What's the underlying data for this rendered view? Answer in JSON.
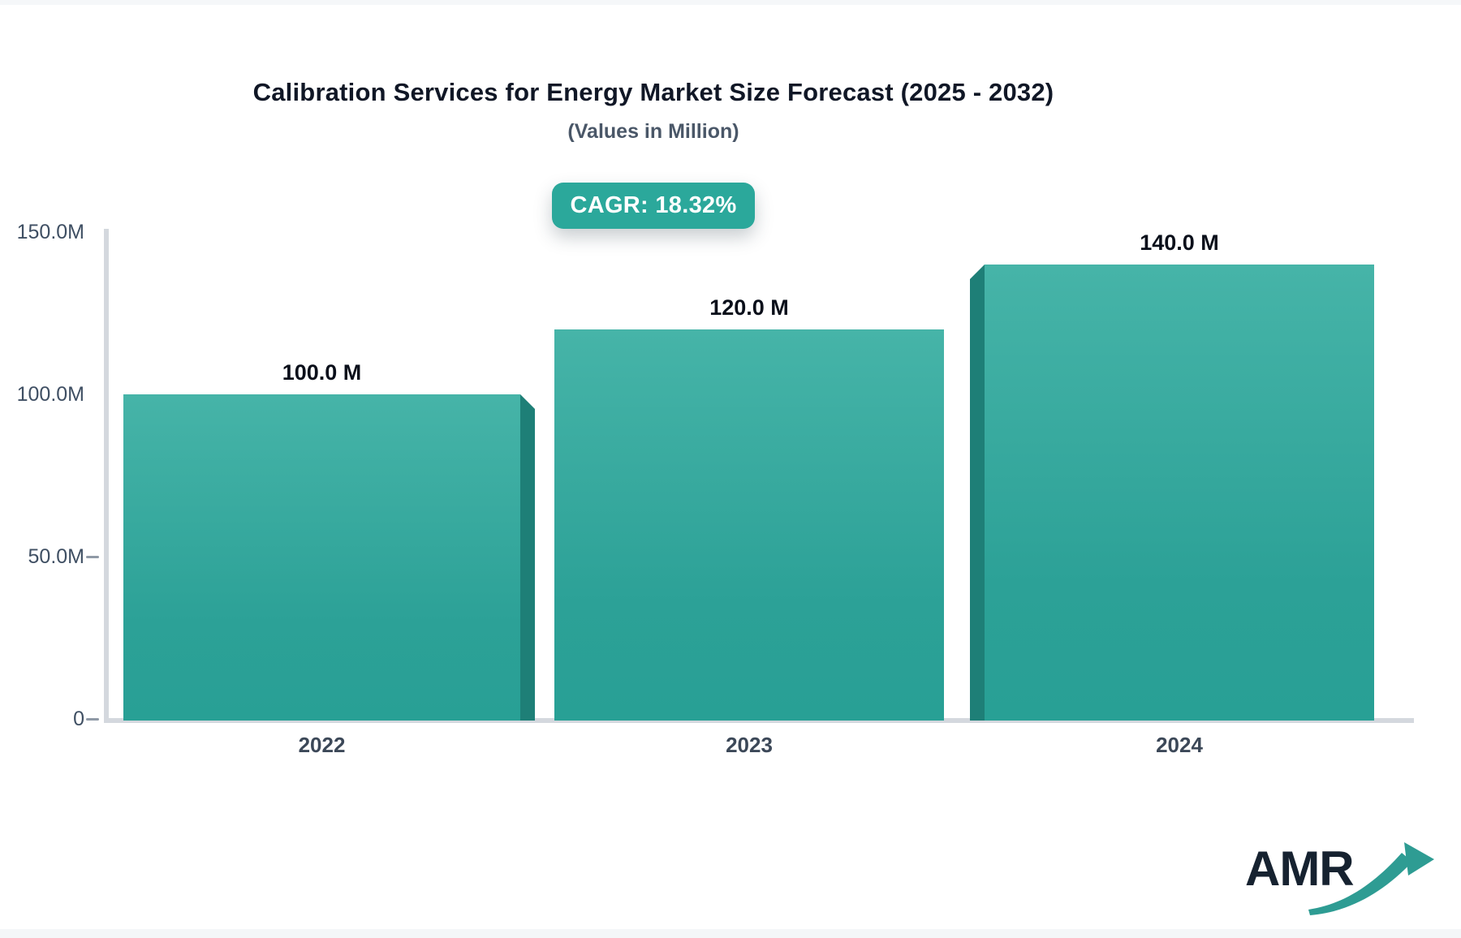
{
  "page": {
    "title": "Calibration Services for Energy Market Size Forecast (2025 - 2032)",
    "subtitle": "(Values in Million)",
    "cagr_label": "CAGR: 18.32%",
    "logo_text": "AMR"
  },
  "colors": {
    "bar_gradient_top": "#46b4a8",
    "bar_gradient_bottom": "#28a095",
    "bar_side_panel": "#1e7f77",
    "badge_background": "#2ba89b",
    "badge_text": "#ffffff",
    "axis_line": "#d4d8de",
    "axis_text": "#3f4f63",
    "title_text": "#101726",
    "subtitle_text": "#4a5768",
    "value_text": "#0a0f1a",
    "logo_text": "#162230",
    "logo_arrow": "#2e9c93"
  },
  "chart_data": {
    "type": "bar",
    "title": "Calibration Services for Energy Market Size Forecast (2025 - 2032)",
    "subtitle": "(Values in Million)",
    "unit": "Million",
    "annotation": "CAGR: 18.32%",
    "categories": [
      "2022",
      "2023",
      "2024"
    ],
    "values": [
      100.0,
      120.0,
      140.0
    ],
    "ylim": [
      0,
      150
    ],
    "grid": false,
    "legend": "none",
    "yticks": [
      {
        "label": "150.0M",
        "value": 150,
        "tick": false
      },
      {
        "label": "100.0M",
        "value": 100,
        "tick": false
      },
      {
        "label": "50.0M",
        "value": 50,
        "tick": true
      },
      {
        "label": "0",
        "value": 0,
        "tick": true
      }
    ],
    "bars": [
      {
        "category": "2022",
        "value": 100.0,
        "label": "100.0 M",
        "extrude_side": "right"
      },
      {
        "category": "2023",
        "value": 120.0,
        "label": "120.0 M",
        "extrude_side": "none"
      },
      {
        "category": "2024",
        "value": 140.0,
        "label": "140.0 M",
        "extrude_side": "left"
      }
    ]
  }
}
